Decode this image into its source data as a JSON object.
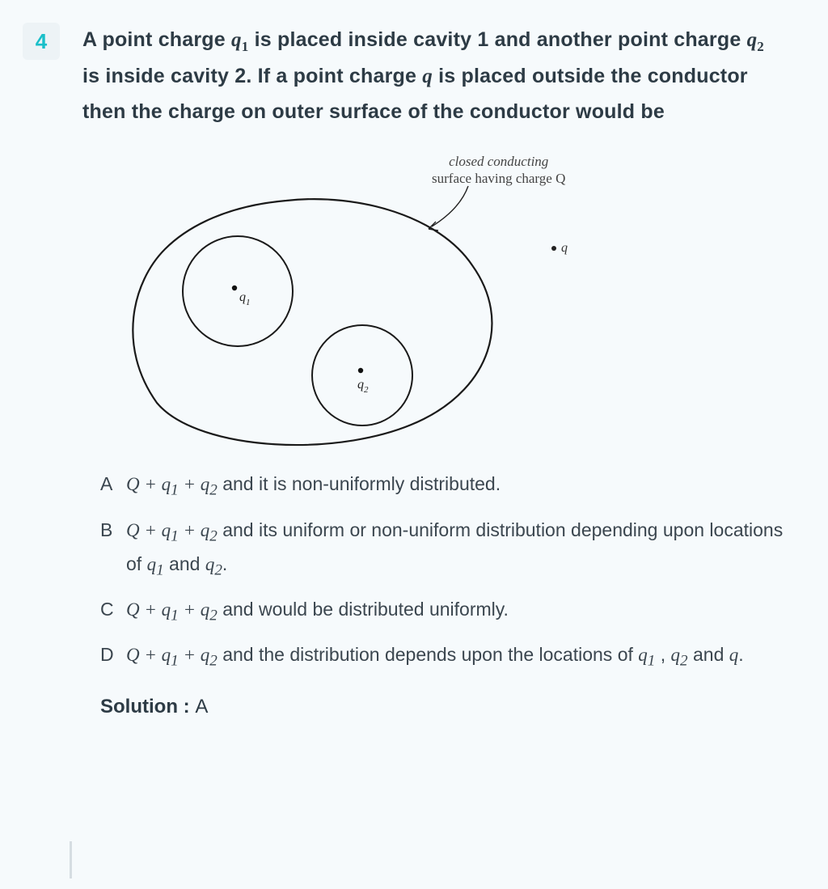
{
  "question": {
    "number": "4",
    "text_html": "A point charge <span class='math-i'>q</span><span class='sub'>1</span> is placed inside cavity 1 and another point charge <span class='math-i'>q</span><span class='sub'>2</span> is inside cavity 2. If a point charge <span class='math-i'>q</span> is placed outside the conductor then the charge on outer surface of the conductor would be"
  },
  "figure": {
    "caption_line1": "closed conducting",
    "caption_line2": "surface having charge Q",
    "outer_stroke": "#1a1a1a",
    "cavity_stroke": "#1a1a1a",
    "label_q1": "q",
    "label_q1_sub": "1",
    "label_q2": "q",
    "label_q2_sub": "2",
    "ext_charge_label": "q"
  },
  "options": {
    "A": {
      "letter": "A",
      "body_html": "<span class='math'>Q + q<sub>1</sub> + q<sub>2</sub></span> and it is non-uniformly distributed."
    },
    "B": {
      "letter": "B",
      "body_html": "<span class='math'>Q + q<sub>1</sub> + q<sub>2</sub></span> and its uniform or non-uniform distribution depending upon locations of <span class='math'>q<sub>1</sub></span> and <span class='math'>q<sub>2</sub></span>."
    },
    "C": {
      "letter": "C",
      "body_html": "<span class='math'>Q + q<sub>1</sub> + q<sub>2</sub></span> and would be distributed uniformly."
    },
    "D": {
      "letter": "D",
      "body_html": "<span class='math'>Q + q<sub>1</sub> + q<sub>2</sub></span> and the distribution depends upon the locations of <span class='math'>q<sub>1</sub></span> , <span class='math'>q<sub>2</sub></span> and <span class='math'>q</span>."
    }
  },
  "solution": {
    "label": "Solution :",
    "answer": "A"
  }
}
